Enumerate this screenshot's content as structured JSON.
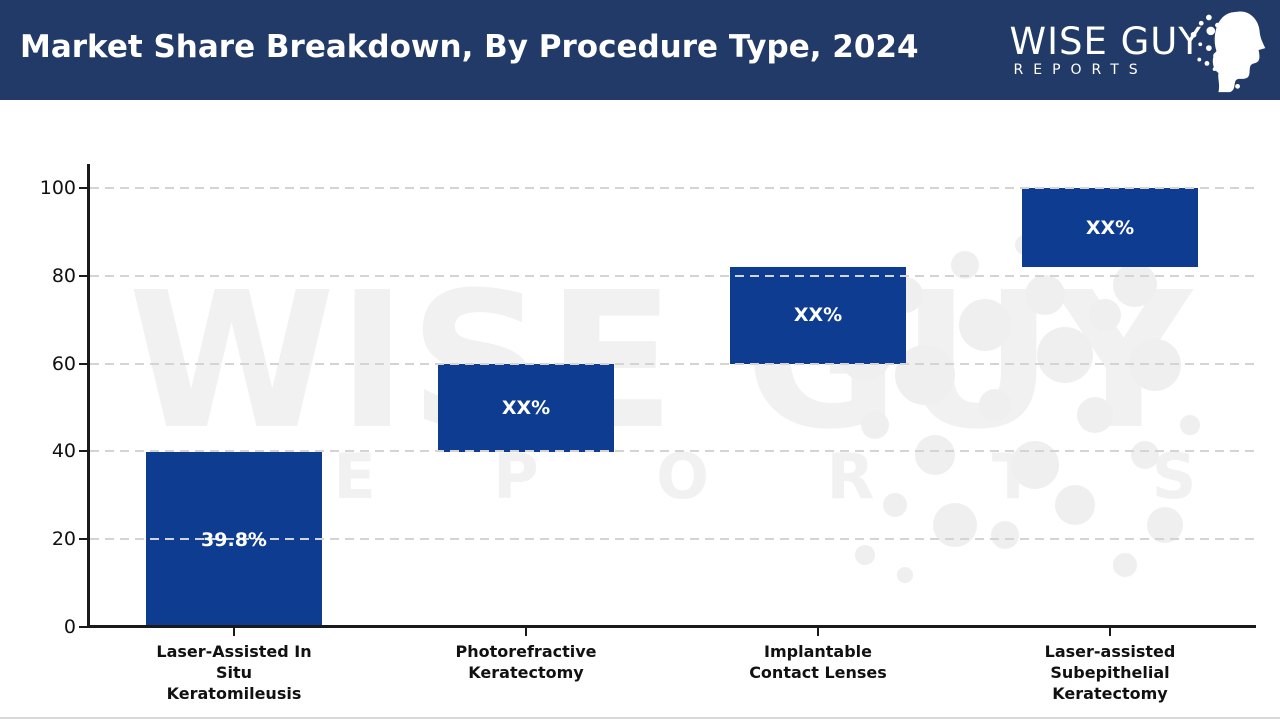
{
  "header": {
    "title": "Market Share Breakdown, By Procedure Type, 2024",
    "bg_color": "#223A67",
    "logo": {
      "wordmark": "WISE GUY",
      "subtext": "REPORTS"
    }
  },
  "watermark": {
    "line1": "WISE GUY",
    "line2": "R E P O R T S"
  },
  "chart_data": {
    "type": "bar",
    "subtype": "waterfall",
    "title": "Market Share Breakdown, By Procedure Type, 2024",
    "categories": [
      "Laser-Assisted In Situ Keratomileusis",
      "Photorefractive Keratectomy",
      "Implantable Contact Lenses",
      "Laser-assisted Subepithelial Keratectomy"
    ],
    "category_display_lines": [
      "Laser-Assisted In\nSitu\nKeratomileusis",
      "Photorefractive\nKeratectomy",
      "Implantable\nContact Lenses",
      "Laser-assisted\nSubepithelial\nKeratectomy"
    ],
    "segments": [
      {
        "start": 0,
        "end": 39.8,
        "label": "39.8%"
      },
      {
        "start": 39.8,
        "end": 60,
        "label": "XX%"
      },
      {
        "start": 60,
        "end": 82,
        "label": "XX%"
      },
      {
        "start": 82,
        "end": 100,
        "label": "XX%"
      }
    ],
    "bar_color": "#0D3C91",
    "bar_label_color": "#FFFFFF",
    "ylim": [
      0,
      100
    ],
    "yticks": [
      0,
      20,
      40,
      60,
      80,
      100
    ],
    "grid": {
      "axis": "y",
      "style": "dashed",
      "color": "#D4D4D4"
    },
    "axis_color": "#1A1A1A",
    "legend": "none"
  }
}
